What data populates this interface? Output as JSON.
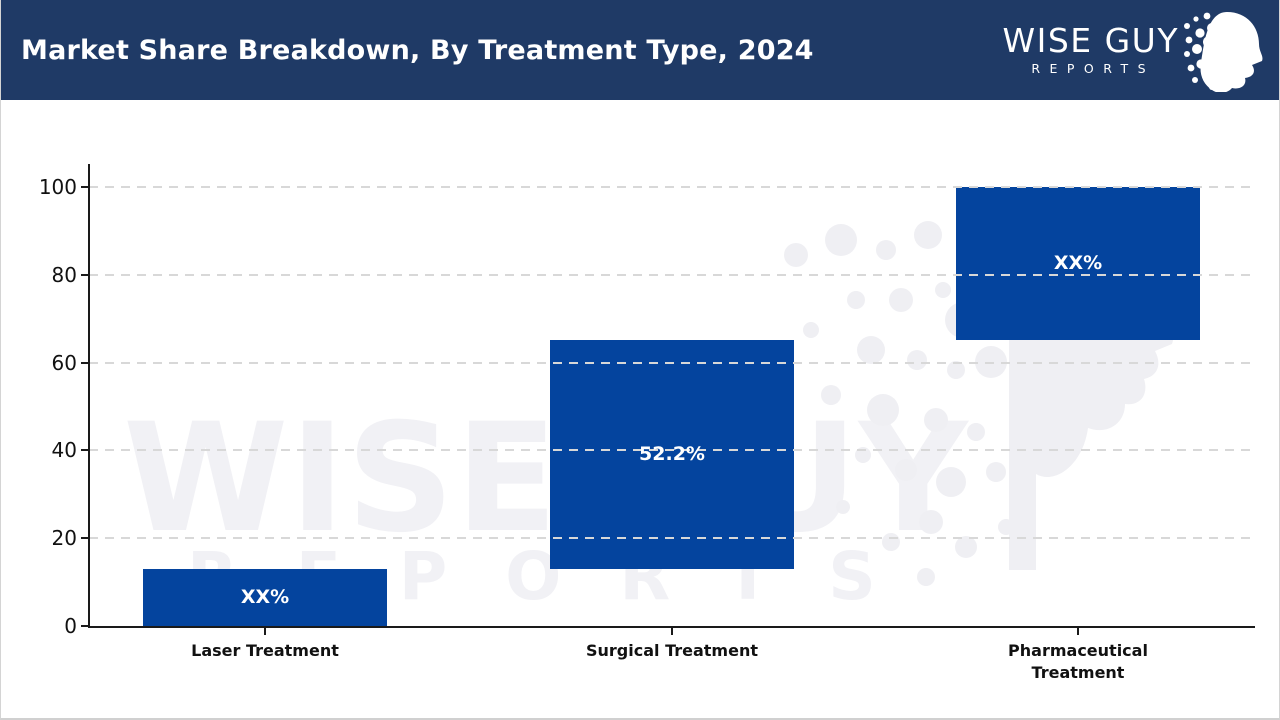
{
  "header": {
    "title": "Market Share Breakdown, By Treatment Type, 2024",
    "logo": {
      "line1": "WISE GUY",
      "line2": "REPORTS"
    }
  },
  "watermark": {
    "line1": "WISE GUY",
    "line2": "REPORTS"
  },
  "colors": {
    "header_bg": "#1f3a66",
    "bar": "#04449e",
    "grid": "#d8d8d8",
    "axis": "#1a1a1a",
    "bar_label": "#ffffff",
    "watermark": "#f1f1f5"
  },
  "chart_data": {
    "type": "bar",
    "subtype": "floating-segment breakdown (waterfall-style, segments sum to 100%)",
    "title": "Market Share Breakdown, By Treatment Type, 2024",
    "categories": [
      "Laser Treatment",
      "Surgical Treatment",
      "Pharmaceutical Treatment"
    ],
    "segments": [
      {
        "category": "Laser Treatment",
        "start": 0,
        "end": 13.0,
        "value": 13.0,
        "label": "XX%"
      },
      {
        "category": "Surgical Treatment",
        "start": 13.0,
        "end": 65.2,
        "value": 52.2,
        "label": "52.2%"
      },
      {
        "category": "Pharmaceutical Treatment",
        "start": 65.2,
        "end": 100,
        "value": 34.8,
        "label": "XX%"
      }
    ],
    "xlabel": "",
    "ylabel": "",
    "ylim": [
      0,
      105
    ],
    "yticks": [
      0,
      20,
      40,
      60,
      80,
      100
    ],
    "grid": "horizontal dashed, drawn over bars",
    "legend": "none"
  }
}
